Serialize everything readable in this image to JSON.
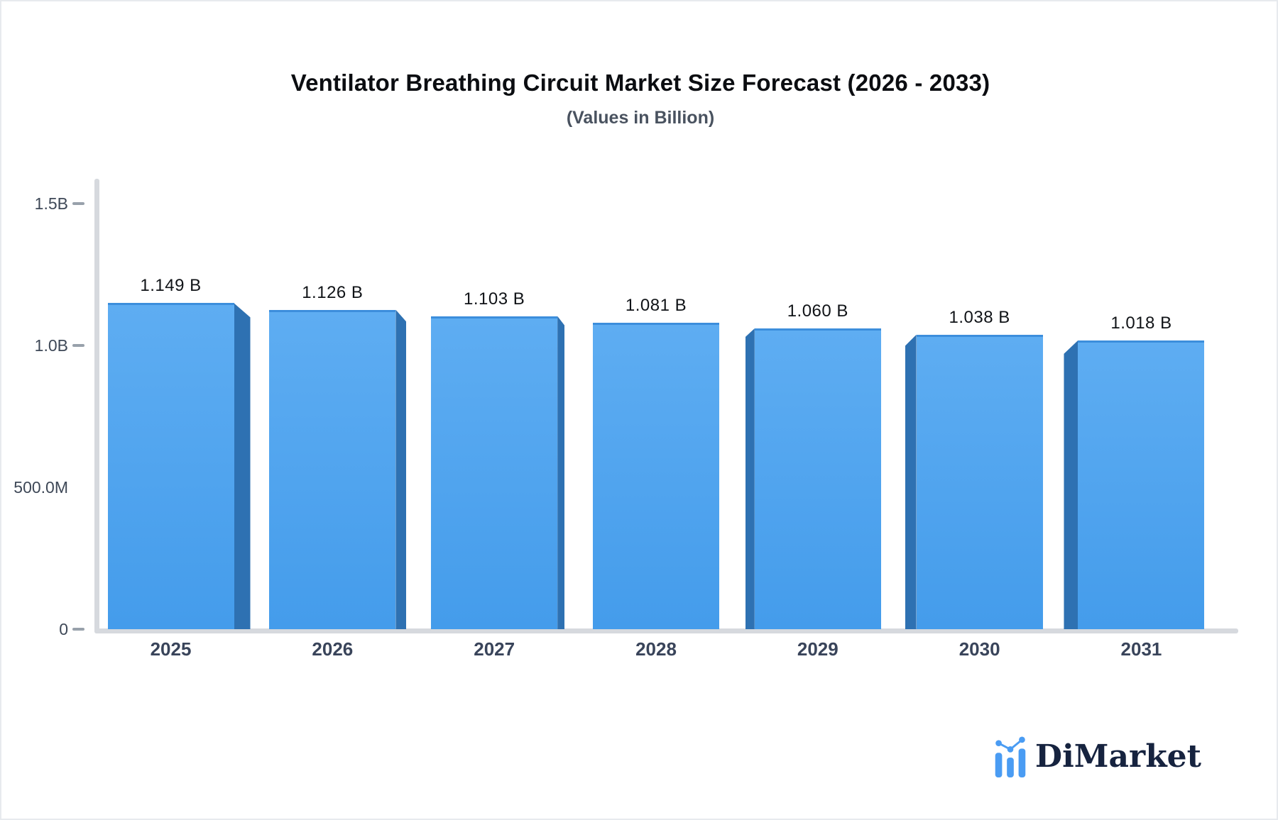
{
  "page": {
    "title": "Ventilator Breathing Circuit Market Size Forecast (2026 - 2033)",
    "subtitle": "(Values in Billion)"
  },
  "chart_data": {
    "type": "bar",
    "title": "Ventilator Breathing Circuit Market Size Forecast (2026 - 2033)",
    "subtitle": "(Values in Billion)",
    "categories": [
      "2025",
      "2026",
      "2027",
      "2028",
      "2029",
      "2030",
      "2031"
    ],
    "values": [
      1.149,
      1.126,
      1.103,
      1.081,
      1.06,
      1.038,
      1.018
    ],
    "value_labels": [
      "1.149 B",
      "1.126 B",
      "1.103 B",
      "1.081 B",
      "1.060 B",
      "1.038 B",
      "1.018 B"
    ],
    "unit": "Billion",
    "ylim": [
      0,
      1.5
    ],
    "yticks": [
      {
        "label": "1.5B",
        "value": 1.5,
        "dash": true
      },
      {
        "label": "1.0B",
        "value": 1.0,
        "dash": true
      },
      {
        "label": "500.0M",
        "value": 0.5,
        "dash": false
      },
      {
        "label": "0",
        "value": 0.0,
        "dash": true
      }
    ],
    "grid": false,
    "legend": false,
    "bar_style": "3d-perspective",
    "colors": {
      "bar_face_top": "#5eadf2",
      "bar_face_bottom": "#449ceb",
      "bar_top_edge": "#3c8edc",
      "bar_side": "#2e71b2",
      "axis": "#d6d9de",
      "tick_dash": "#98a1ab",
      "ytick_label": "#3e4857",
      "xtick_label": "#39445a",
      "value_label": "#101317"
    }
  },
  "branding": {
    "logo_text": "DiMarket",
    "logo_icon": "bar-line-chart-icon",
    "icon_color": "#4a9cf3",
    "text_color": "#16233f"
  }
}
